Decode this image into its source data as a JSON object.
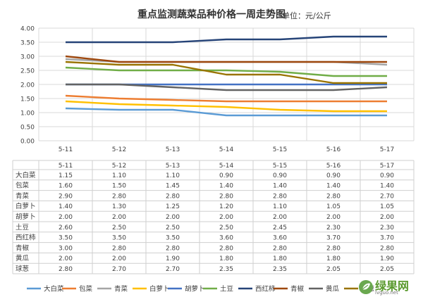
{
  "chart_data": {
    "type": "line",
    "title": "重点监测蔬菜品种价格一周走势图",
    "unit_label": "单位：元/公斤",
    "categories": [
      "5-11",
      "5-12",
      "5-13",
      "5-14",
      "5-15",
      "5-16",
      "5-17"
    ],
    "ylim": [
      0,
      4
    ],
    "yticks": [
      "0.00",
      "0.50",
      "1.00",
      "1.50",
      "2.00",
      "2.50",
      "3.00",
      "3.50",
      "4.00"
    ],
    "grid": true,
    "legend_position": "bottom",
    "series": [
      {
        "name": "大白菜",
        "color": "#5b9bd5",
        "values": [
          1.15,
          1.1,
          1.1,
          0.9,
          0.9,
          0.9,
          0.9
        ],
        "labels": [
          "1.15",
          "1.10",
          "1.10",
          "0.90",
          "0.90",
          "0.90",
          "0.90"
        ]
      },
      {
        "name": "包菜",
        "color": "#ed7d31",
        "values": [
          1.6,
          1.5,
          1.45,
          1.4,
          1.4,
          1.4,
          1.4
        ],
        "labels": [
          "1.60",
          "1.50",
          "1.45",
          "1.40",
          "1.40",
          "1.40",
          "1.40"
        ]
      },
      {
        "name": "青菜",
        "color": "#a5a5a5",
        "values": [
          2.9,
          2.8,
          2.8,
          2.8,
          2.8,
          2.8,
          2.7
        ],
        "labels": [
          "2.90",
          "2.80",
          "2.80",
          "2.80",
          "2.80",
          "2.80",
          "2.70"
        ]
      },
      {
        "name": "白萝卜",
        "color": "#ffc000",
        "values": [
          1.4,
          1.3,
          1.25,
          1.2,
          1.1,
          1.05,
          1.05
        ],
        "labels": [
          "1.40",
          "1.30",
          "1.25",
          "1.20",
          "1.10",
          "1.05",
          "1.05"
        ]
      },
      {
        "name": "胡萝卜",
        "color": "#4472c4",
        "values": [
          2.0,
          2.0,
          2.0,
          2.0,
          2.0,
          2.0,
          2.0
        ],
        "labels": [
          "2.00",
          "2.00",
          "2.00",
          "2.00",
          "2.00",
          "2.00",
          "2.00"
        ]
      },
      {
        "name": "土豆",
        "color": "#70ad47",
        "values": [
          2.6,
          2.5,
          2.5,
          2.5,
          2.45,
          2.3,
          2.3
        ],
        "labels": [
          "2.60",
          "2.50",
          "2.50",
          "2.50",
          "2.45",
          "2.30",
          "2.30"
        ]
      },
      {
        "name": "西红柿",
        "color": "#264478",
        "values": [
          3.5,
          3.5,
          3.5,
          3.6,
          3.6,
          3.7,
          3.7
        ],
        "labels": [
          "3.50",
          "3.50",
          "3.50",
          "3.60",
          "3.60",
          "3.70",
          "3.70"
        ]
      },
      {
        "name": "青椒",
        "color": "#9e480e",
        "values": [
          3.0,
          2.8,
          2.8,
          2.8,
          2.8,
          2.8,
          2.8
        ],
        "labels": [
          "3.00",
          "2.80",
          "2.80",
          "2.80",
          "2.80",
          "2.80",
          "2.80"
        ]
      },
      {
        "name": "黄瓜",
        "color": "#636363",
        "values": [
          2.0,
          2.0,
          1.9,
          1.8,
          1.8,
          1.8,
          1.9
        ],
        "labels": [
          "2.00",
          "2.00",
          "1.90",
          "1.80",
          "1.80",
          "1.80",
          "1.90"
        ]
      },
      {
        "name": "球葱",
        "color": "#997300",
        "values": [
          2.8,
          2.7,
          2.7,
          2.35,
          2.35,
          2.05,
          2.05
        ],
        "labels": [
          "2.80",
          "2.70",
          "2.70",
          "2.35",
          "2.35",
          "2.05",
          "2.05"
        ]
      }
    ]
  },
  "watermark": {
    "brand": "绿果网",
    "url": "lvguo.net"
  }
}
